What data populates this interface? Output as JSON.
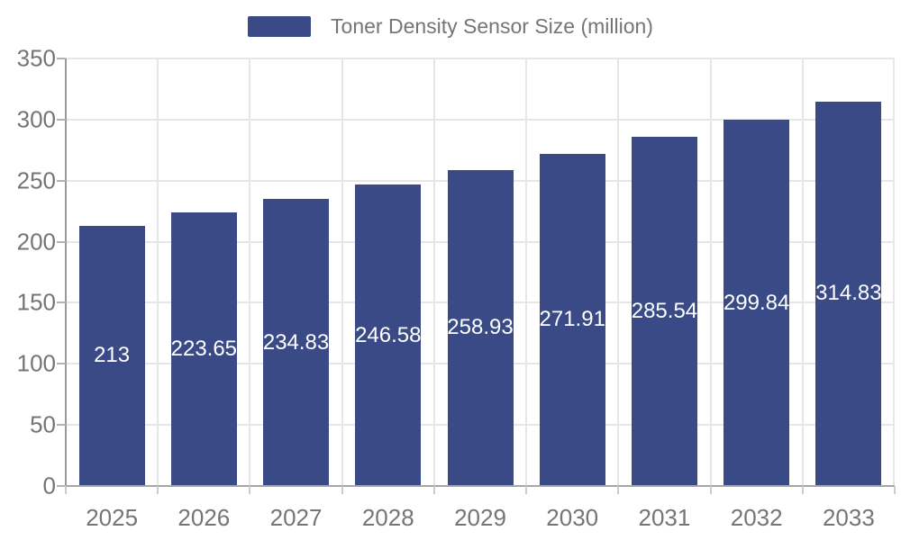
{
  "chart_data": {
    "type": "bar",
    "legend": "Toner Density Sensor Size (million)",
    "legend_position": "top-center",
    "categories": [
      "2025",
      "2026",
      "2027",
      "2028",
      "2029",
      "2030",
      "2031",
      "2032",
      "2033"
    ],
    "values": [
      213,
      223.65,
      234.83,
      246.58,
      258.93,
      271.91,
      285.54,
      299.84,
      314.83
    ],
    "value_labels": [
      "213",
      "223.65",
      "234.83",
      "246.58",
      "258.93",
      "271.91",
      "285.54",
      "299.84",
      "314.83"
    ],
    "title": "",
    "xlabel": "",
    "ylabel": "",
    "ylim": [
      0,
      350
    ],
    "yticks": [
      0,
      50,
      100,
      150,
      200,
      250,
      300,
      350
    ],
    "grid": true,
    "bar_color": "#394A86",
    "value_label_color": "#ffffff",
    "axis_text_color": "#757575"
  }
}
